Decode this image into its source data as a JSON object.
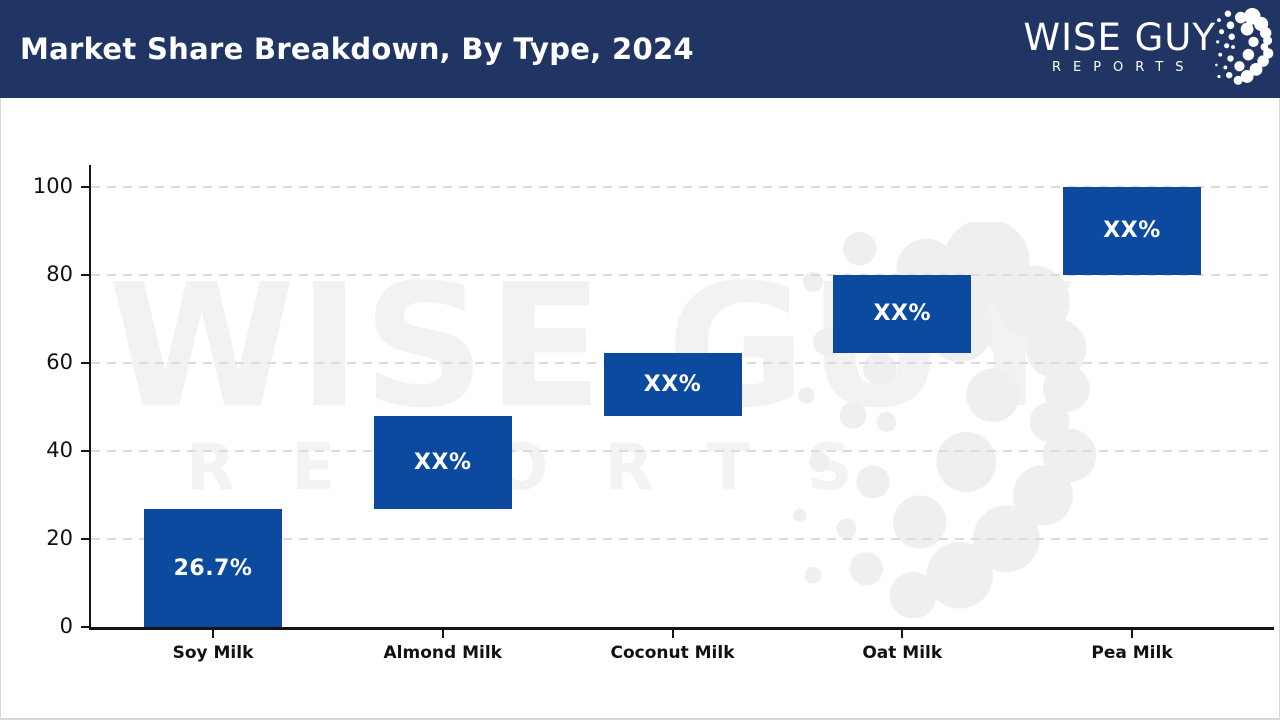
{
  "header": {
    "title": "Market Share Breakdown, By Type, 2024",
    "logo": {
      "wordmark": "WISE GUY",
      "subtext": "REPORTS"
    }
  },
  "watermark": {
    "line1": "WISE GUY",
    "line2": "REPORTS"
  },
  "chart_data": {
    "type": "bar",
    "subtype": "floating-waterfall",
    "title": "Market Share Breakdown, By Type, 2024",
    "categories": [
      "Soy Milk",
      "Almond Milk",
      "Coconut Milk",
      "Oat Milk",
      "Pea Milk"
    ],
    "bars": [
      {
        "category": "Soy Milk",
        "start": 0,
        "end": 26.7,
        "label": "26.7%"
      },
      {
        "category": "Almond Milk",
        "start": 26.7,
        "end": 48.0,
        "label": "XX%"
      },
      {
        "category": "Coconut Milk",
        "start": 48.0,
        "end": 62.3,
        "label": "XX%"
      },
      {
        "category": "Oat Milk",
        "start": 62.3,
        "end": 80.0,
        "label": "XX%"
      },
      {
        "category": "Pea Milk",
        "start": 80.0,
        "end": 100.0,
        "label": "XX%"
      }
    ],
    "y_ticks": [
      0,
      20,
      40,
      60,
      80,
      100
    ],
    "ylim": [
      0,
      105
    ],
    "xlabel": "",
    "ylabel": "",
    "grid": "dashed-horizontal",
    "legend": "none",
    "colors": {
      "bar": "#0B4A9E",
      "bar_label": "#FFFFFF",
      "axis": "#141414",
      "tick_label": "#111111",
      "gridline": "#DCDCDC",
      "header_bg": "#213564",
      "header_text": "#FFFFFF",
      "watermark": "#F2F2F2"
    }
  }
}
